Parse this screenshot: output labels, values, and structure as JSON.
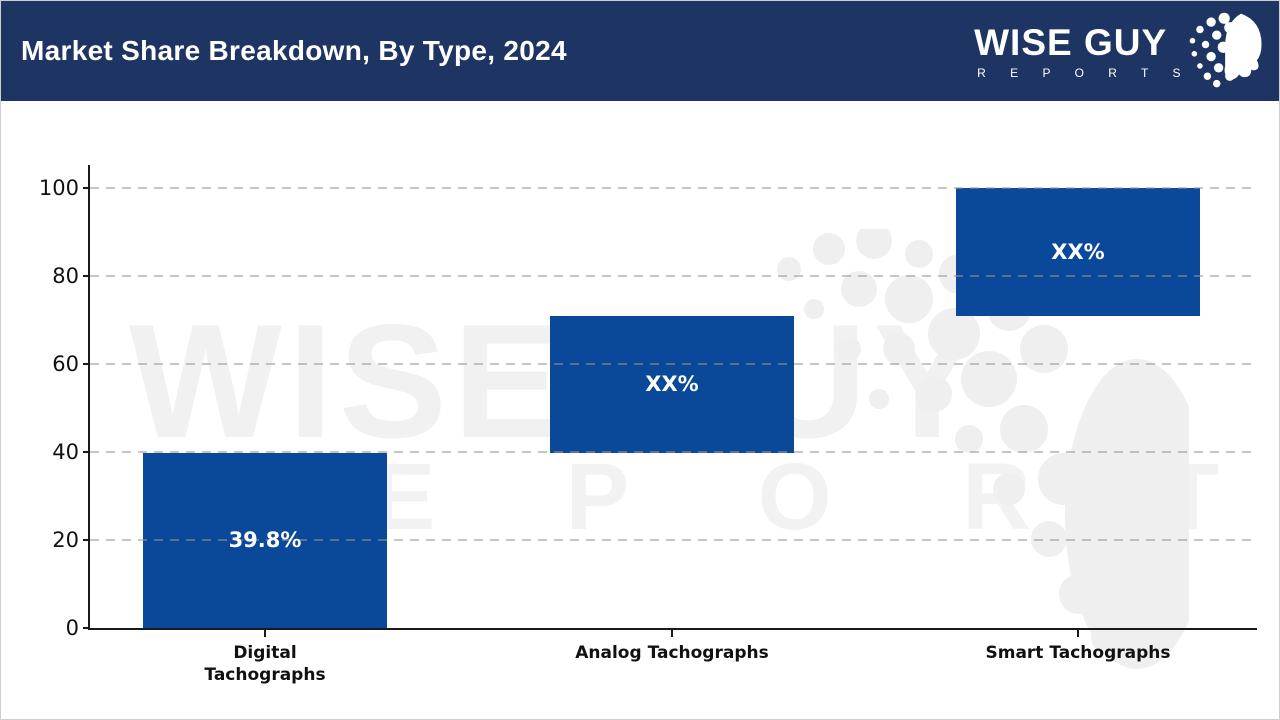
{
  "header": {
    "title": "Market Share Breakdown, By Type, 2024",
    "logo": {
      "brand": "WISE GUY",
      "sub": "R E P O R T S"
    }
  },
  "watermark": {
    "brand": "WISE GUY",
    "sub": "R E P O R T S"
  },
  "chart_data": {
    "type": "bar",
    "variant": "stacked-waterfall",
    "title": "Market Share Breakdown, By Type, 2024",
    "categories": [
      "Digital\nTachographs",
      "Analog Tachographs",
      "Smart Tachographs"
    ],
    "segments": [
      {
        "category": "Digital Tachographs",
        "start": 0,
        "end": 39.8,
        "label": "39.8%"
      },
      {
        "category": "Analog Tachographs",
        "start": 39.8,
        "end": 71,
        "label": "XX%"
      },
      {
        "category": "Smart Tachographs",
        "start": 71,
        "end": 100,
        "label": "XX%"
      }
    ],
    "y_ticks": [
      0,
      20,
      40,
      60,
      80,
      100
    ],
    "ylim": [
      0,
      105
    ],
    "xlabel": "",
    "ylabel": "",
    "grid": "horizontal-dashed",
    "legend": "none",
    "colors": {
      "bar": "#0a4899",
      "bar_label": "#ffffff",
      "header_bg": "#1e3462",
      "axis": "#1a1a1a",
      "grid": "#c9c9c9",
      "watermark": "#f1f1f1"
    }
  }
}
